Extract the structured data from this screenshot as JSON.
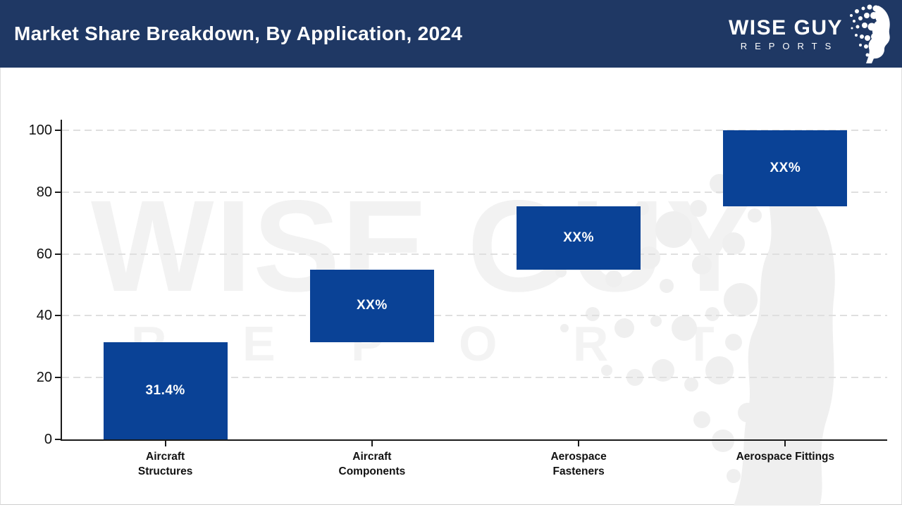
{
  "header": {
    "title": "Market Share Breakdown, By Application, 2024",
    "logo": {
      "line1": "WISE GUY",
      "line2": "REPORTS"
    }
  },
  "watermark": {
    "line1": "WISE GUY",
    "line2": "R E P O R T S"
  },
  "colors": {
    "header_bg": "#1f3864",
    "bar": "#0a4296",
    "bar_label": "#ffffff",
    "axis": "#1a1a1a",
    "gridline": "#dfdfdf",
    "watermark": "#f2f2f2"
  },
  "chart_data": {
    "type": "bar",
    "subtype": "waterfall-cumulative-floating",
    "title": "Market Share Breakdown, By Application, 2024",
    "categories": [
      "Aircraft Structures",
      "Aircraft Components",
      "Aerospace Fasteners",
      "Aerospace Fittings"
    ],
    "category_label_lines": [
      [
        "Aircraft",
        "Structures"
      ],
      [
        "Aircraft",
        "Components"
      ],
      [
        "Aerospace",
        "Fasteners"
      ],
      [
        "Aerospace Fittings"
      ]
    ],
    "bars": [
      {
        "category": "Aircraft Structures",
        "start": 0,
        "end": 31.4,
        "label": "31.4%"
      },
      {
        "category": "Aircraft Components",
        "start": 31.4,
        "end": 55,
        "label": "XX%"
      },
      {
        "category": "Aerospace Fasteners",
        "start": 55,
        "end": 75.5,
        "label": "XX%"
      },
      {
        "category": "Aerospace Fittings",
        "start": 75.5,
        "end": 100,
        "label": "XX%"
      }
    ],
    "xlabel": "",
    "ylabel": "",
    "ylim": [
      0,
      100
    ],
    "yticks": [
      0,
      20,
      40,
      60,
      80,
      100
    ],
    "grid": "horizontal-dashed",
    "legend": "none"
  }
}
